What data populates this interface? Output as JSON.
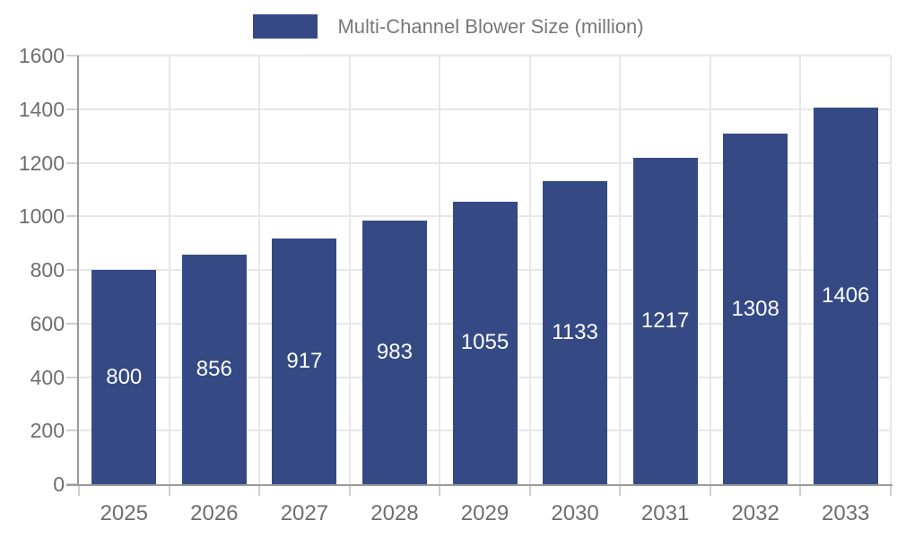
{
  "chart_data": {
    "type": "bar",
    "title": "Multi-Channel Blower Size (million)",
    "categories": [
      "2025",
      "2026",
      "2027",
      "2028",
      "2029",
      "2030",
      "2031",
      "2032",
      "2033"
    ],
    "values": [
      800,
      856,
      917,
      983,
      1055,
      1133,
      1217,
      1308,
      1406
    ],
    "xlabel": "",
    "ylabel": "",
    "ylim": [
      0,
      1600
    ],
    "ytick_step": 200,
    "grid": true,
    "legend_position": "top",
    "bar_labels_position": "inside-center",
    "colors": {
      "bar": "#354A85",
      "bar_label": "#FFFFFF",
      "axis": "#9A9A9A",
      "grid": "#E7E7E9",
      "tick": "#CFCFCF",
      "axis_text": "#6E6E6E",
      "legend_text": "#787878",
      "background": "#FFFFFF"
    }
  }
}
